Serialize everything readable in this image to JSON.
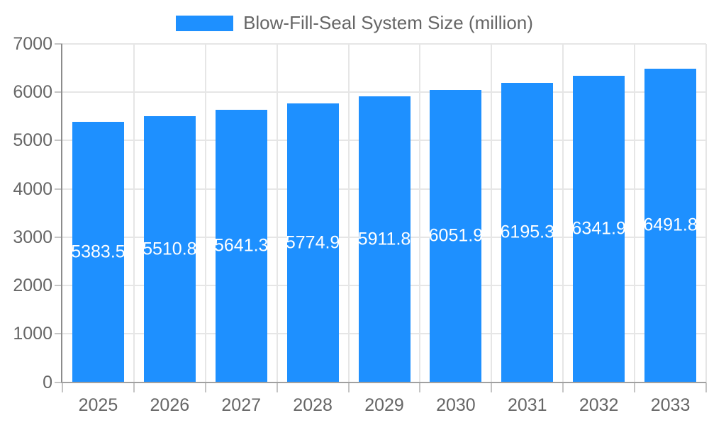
{
  "legend": {
    "label": "Blow-Fill-Seal System Size (million)"
  },
  "chart_data": {
    "type": "bar",
    "title": "Blow-Fill-Seal System Size (million)",
    "categories": [
      "2025",
      "2026",
      "2027",
      "2028",
      "2029",
      "2030",
      "2031",
      "2032",
      "2033"
    ],
    "values": [
      5383.5,
      5510.8,
      5641.3,
      5774.9,
      5911.8,
      6051.9,
      6195.3,
      6341.9,
      6491.8
    ],
    "value_labels": [
      "5383.5",
      "5510.8",
      "5641.3",
      "5774.9",
      "5911.8",
      "6051.9",
      "6195.3",
      "6341.9",
      "6491.8"
    ],
    "xlabel": "",
    "ylabel": "",
    "ylim": [
      0,
      7000
    ],
    "yticks": [
      0,
      1000,
      2000,
      3000,
      4000,
      5000,
      6000,
      7000
    ],
    "grid": true,
    "legend_position": "top",
    "bar_label_position": "center-of-bar",
    "colors": {
      "bar": "#1e90ff",
      "grid": "#e6e6e6",
      "axis": "#a0a0a0",
      "tick": "#c4c4c4",
      "tick_label": "#666666",
      "bar_label": "#ffffff",
      "legend_text": "#666666",
      "background": "#ffffff"
    }
  }
}
